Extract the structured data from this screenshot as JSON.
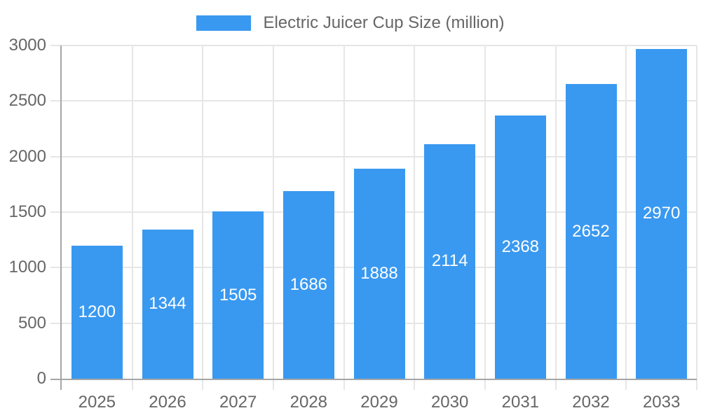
{
  "chart_data": {
    "type": "bar",
    "title": "Electric Juicer Cup Size (million)",
    "legend": {
      "label": "Electric Juicer Cup Size (million)",
      "position": "top"
    },
    "categories": [
      "2025",
      "2026",
      "2027",
      "2028",
      "2029",
      "2030",
      "2031",
      "2032",
      "2033"
    ],
    "values": [
      1200,
      1344,
      1505,
      1686,
      1888,
      2114,
      2368,
      2652,
      2970
    ],
    "bar_value_labels": [
      "1200",
      "1344",
      "1505",
      "1686",
      "1888",
      "2114",
      "2368",
      "2652",
      "2970"
    ],
    "xlabel": "",
    "ylabel": "",
    "ylim": [
      0,
      3000
    ],
    "ytick_interval": 500,
    "yticks": [
      "0",
      "500",
      "1000",
      "1500",
      "2000",
      "2500",
      "3000"
    ],
    "grid": true,
    "colors": {
      "bar": "#3999F0",
      "gridline": "#E6E6E6",
      "axis_line": "#A6A6A6",
      "axis_text": "#666666",
      "legend_text": "#666666",
      "bar_label_text": "#FFFFFF",
      "background": "#FFFFFF"
    }
  }
}
